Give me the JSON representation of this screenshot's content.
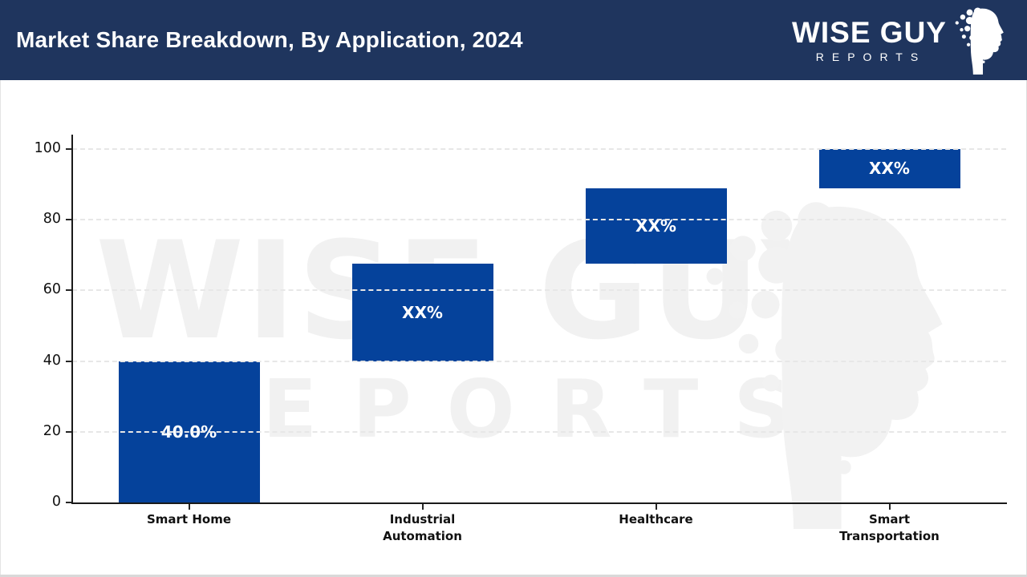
{
  "header": {
    "title": "Market Share Breakdown, By Application, 2024",
    "logo": {
      "line1": "WISE GUY",
      "line2": "REPORTS"
    }
  },
  "watermark": {
    "line1": "WISE GUY",
    "line2": "REPORTS"
  },
  "chart_data": {
    "type": "bar",
    "subtype": "waterfall",
    "title": "Market Share Breakdown, By Application, 2024",
    "categories": [
      "Smart Home",
      "Industrial Automation",
      "Healthcare",
      "Smart Transportation"
    ],
    "segments": [
      {
        "category": "Smart Home",
        "start": 0,
        "end": 40,
        "label": "40.0%"
      },
      {
        "category": "Industrial Automation",
        "start": 40,
        "end": 67.5,
        "label": "XX%"
      },
      {
        "category": "Healthcare",
        "start": 67.5,
        "end": 89,
        "label": "XX%"
      },
      {
        "category": "Smart Transportation",
        "start": 89,
        "end": 100,
        "label": "XX%"
      }
    ],
    "ylim": [
      0,
      100
    ],
    "yticks": [
      0,
      20,
      40,
      60,
      80,
      100
    ],
    "xlabel": "",
    "ylabel": "",
    "legend": "none",
    "grid": "horizontal-dashed",
    "bar_color": "#05429B",
    "bar_label_color": "#ffffff"
  },
  "colors": {
    "header_bg": "#1F355E",
    "bar": "#05429B",
    "grid": "#e7e7e7",
    "axis": "#1a1a1a",
    "watermark": "#f1f1f1"
  }
}
